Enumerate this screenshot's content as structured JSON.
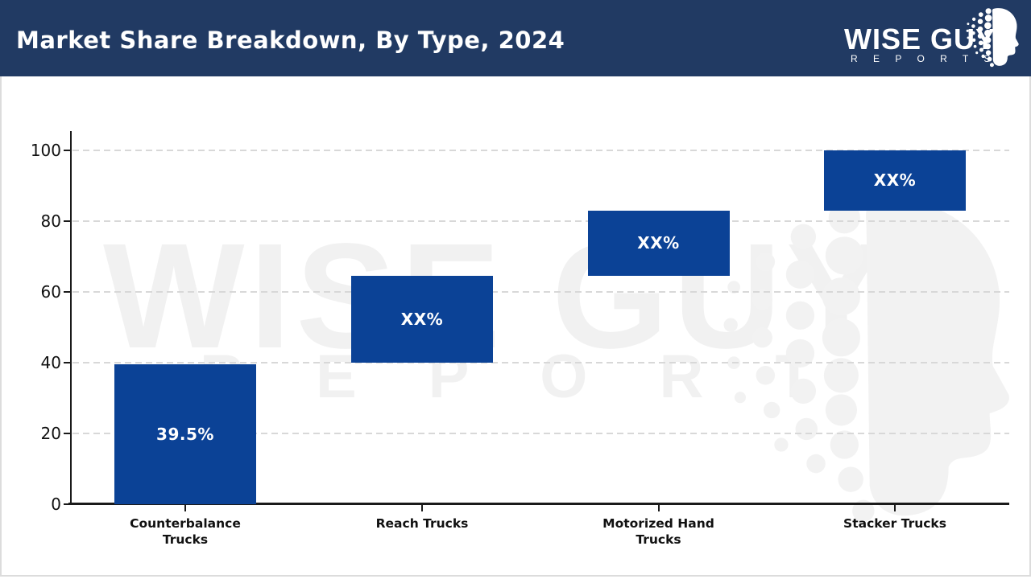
{
  "header": {
    "title": "Market Share Breakdown, By Type, 2024",
    "logo_name": "WISE GUY",
    "logo_sub": "R E P O R T S",
    "bg_color": "#213a63"
  },
  "watermark": {
    "line1": "WISE GUY",
    "line2": "R E P O R T S"
  },
  "chart_data": {
    "type": "bar",
    "subtype": "floating-segment-waterfall",
    "title": "Market Share Breakdown, By Type, 2024",
    "categories": [
      "Counterbalance Trucks",
      "Reach Trucks",
      "Motorized Hand Trucks",
      "Stacker Trucks"
    ],
    "segments": [
      {
        "category": "Counterbalance Trucks",
        "start": 0,
        "end": 39.5,
        "label": "39.5%"
      },
      {
        "category": "Reach Trucks",
        "start": 40,
        "end": 64.5,
        "label": "XX%"
      },
      {
        "category": "Motorized Hand Trucks",
        "start": 64.5,
        "end": 83,
        "label": "XX%"
      },
      {
        "category": "Stacker Trucks",
        "start": 83,
        "end": 100,
        "label": "XX%"
      }
    ],
    "yticks": [
      0,
      20,
      40,
      60,
      80,
      100
    ],
    "ylim": [
      0,
      105
    ],
    "xlabel": "",
    "ylabel": "",
    "grid": "dashed-horizontal",
    "legend": "none",
    "bar_color": "#0b4296",
    "bar_label_color": "#ffffff",
    "axis_color": "#1a1a1a",
    "gridline_color": "#d8d8d8"
  }
}
